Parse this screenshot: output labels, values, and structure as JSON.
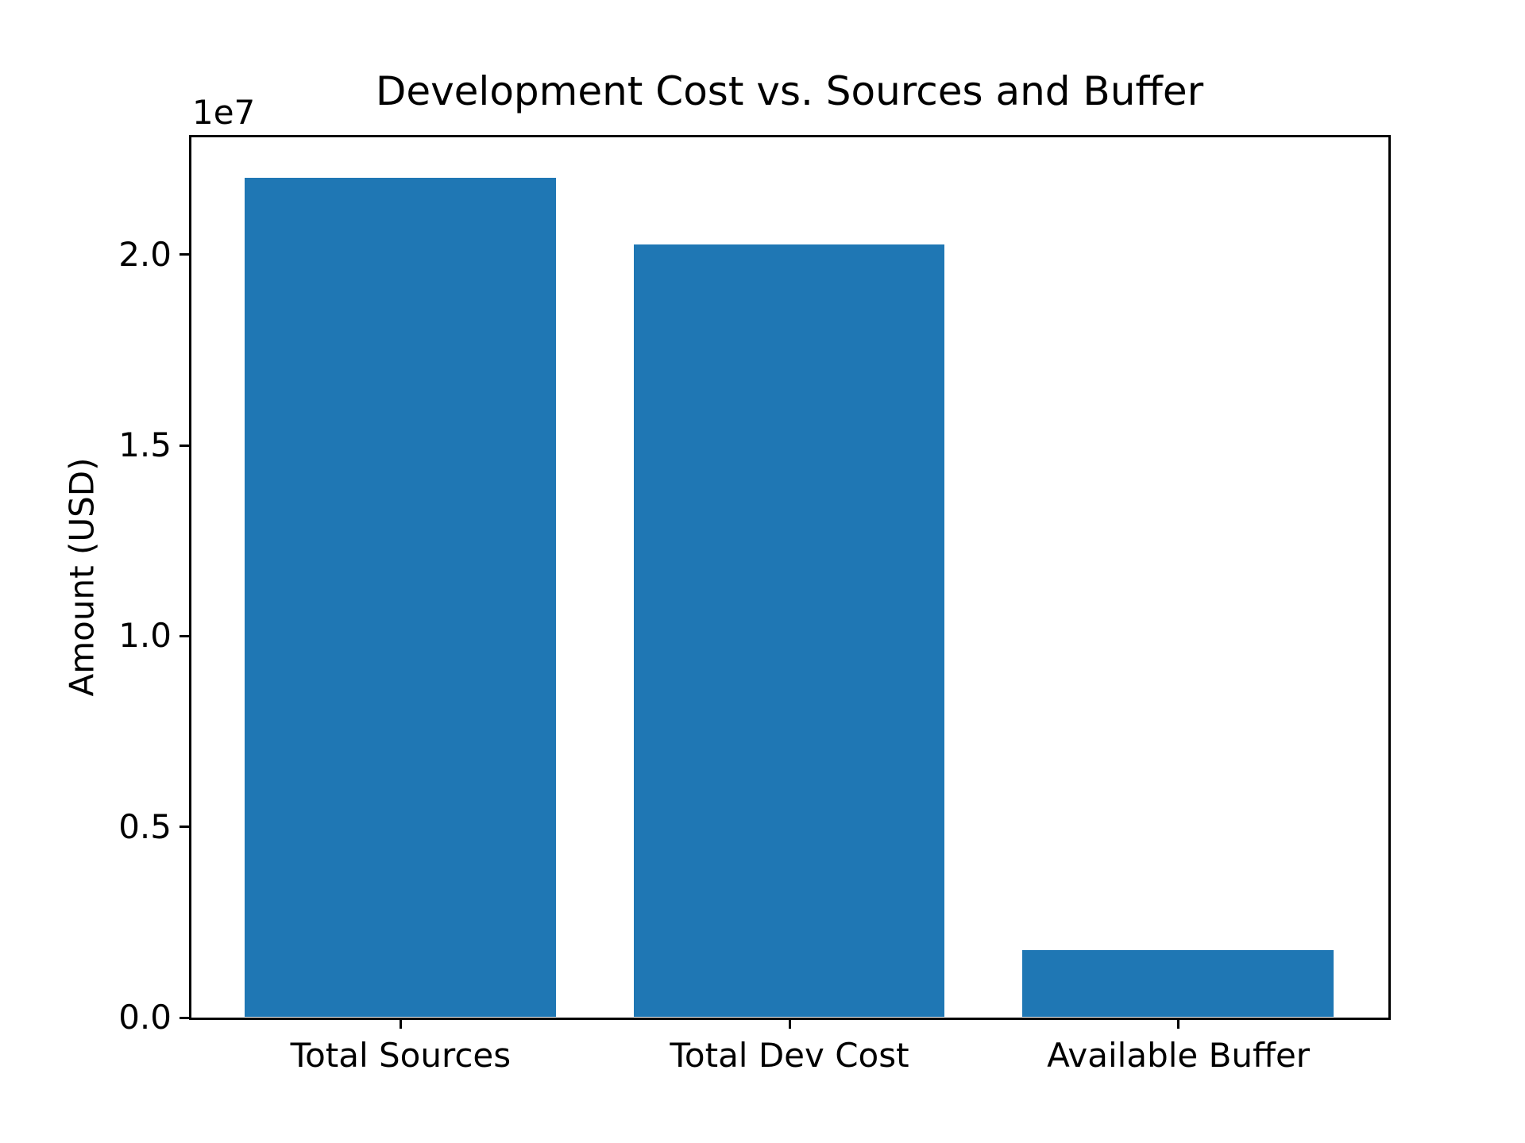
{
  "chart_data": {
    "type": "bar",
    "title": "Development Cost vs. Sources and Buffer",
    "categories": [
      "Total Sources",
      "Total Dev Cost",
      "Available Buffer"
    ],
    "values": [
      22000000,
      20250000,
      1750000
    ],
    "xlabel": "",
    "ylabel": "Amount (USD)",
    "ylim": [
      0,
      23100000
    ],
    "yticks": [
      0,
      5000000,
      10000000,
      15000000,
      20000000
    ],
    "ytick_labels": [
      "0.0",
      "0.5",
      "1.0",
      "1.5",
      "2.0"
    ],
    "offset_text": "1e7",
    "bar_color": "#1f77b4",
    "axis_color": "#000000",
    "grid": false,
    "legend": null
  }
}
